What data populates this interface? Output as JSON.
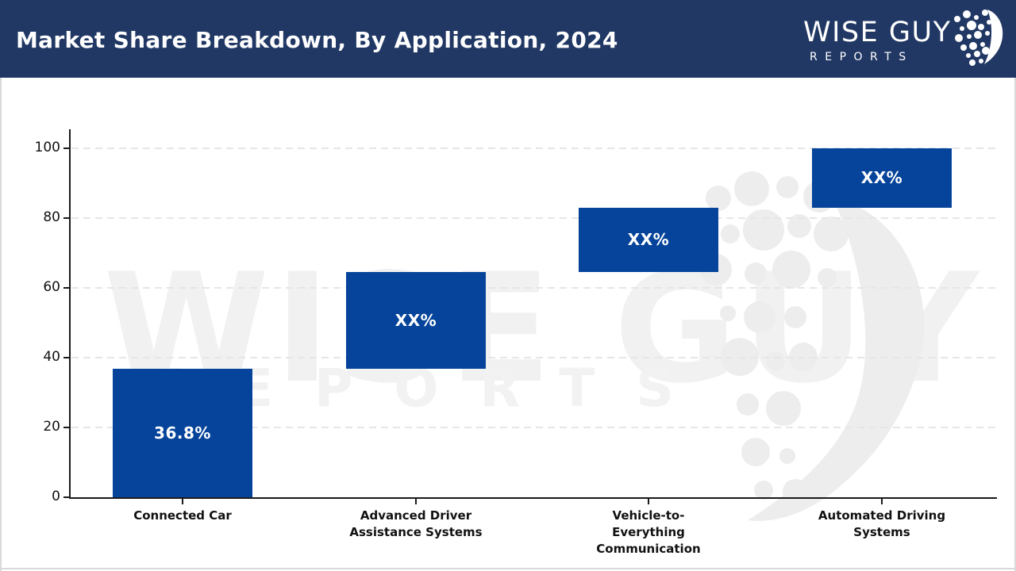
{
  "header": {
    "title": "Market Share Breakdown, By Application, 2024",
    "logo": {
      "line1": "WISE GUY",
      "line2": "REPORTS"
    }
  },
  "watermark": {
    "line1": "WISE GUY",
    "line2": "REPORTS"
  },
  "colors": {
    "header_bg": "#213864",
    "bar": "#05449a",
    "bar_label": "#ffffff",
    "axis": "#1a1a1a",
    "grid": "#e6e6e6",
    "watermark": "#f1f1f1"
  },
  "chart_data": {
    "type": "bar",
    "variant": "floating-segment-breakdown",
    "title": "Market Share Breakdown, By Application, 2024",
    "categories": [
      "Connected Car",
      "Advanced Driver Assistance Systems",
      "Vehicle-to-Everything Communication",
      "Automated Driving Systems"
    ],
    "category_lines": [
      [
        "Connected Car"
      ],
      [
        "Advanced Driver",
        "Assistance Systems"
      ],
      [
        "Vehicle-to-",
        "Everything",
        "Communication"
      ],
      [
        "Automated Driving",
        "Systems"
      ]
    ],
    "segments": [
      {
        "category": "Connected Car",
        "start": 0,
        "end": 36.8,
        "label": "36.8%"
      },
      {
        "category": "Advanced Driver Assistance Systems",
        "start": 36.8,
        "end": 64.6,
        "label": "XX%"
      },
      {
        "category": "Vehicle-to-Everything Communication",
        "start": 64.6,
        "end": 83.0,
        "label": "XX%"
      },
      {
        "category": "Automated Driving Systems",
        "start": 83.0,
        "end": 100.0,
        "label": "XX%"
      }
    ],
    "yticks": [
      0,
      20,
      40,
      60,
      80,
      100
    ],
    "ylim": [
      0,
      105.5
    ],
    "xlabel": "",
    "ylabel": "",
    "grid": "horizontal-dashed",
    "legend": "none"
  }
}
